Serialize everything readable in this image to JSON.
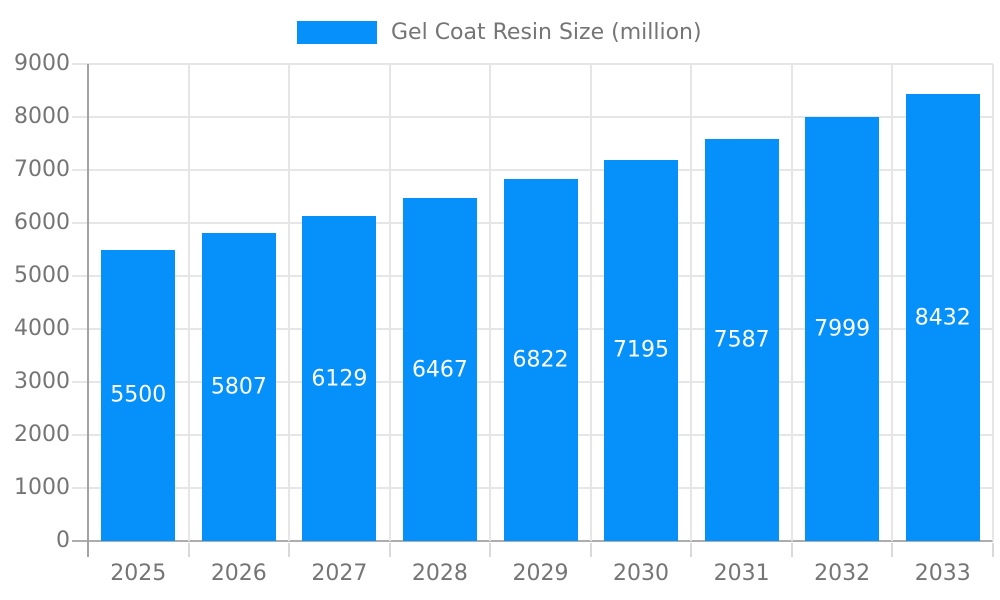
{
  "chart_data": {
    "type": "bar",
    "title": "",
    "legend_label": "Gel Coat Resin Size (million)",
    "legend_position": "top",
    "categories": [
      "2025",
      "2026",
      "2027",
      "2028",
      "2029",
      "2030",
      "2031",
      "2032",
      "2033"
    ],
    "series": [
      {
        "name": "Gel Coat Resin Size (million)",
        "values": [
          5500,
          5807,
          6129,
          6467,
          6822,
          7195,
          7587,
          7999,
          8432
        ]
      }
    ],
    "bar_value_labels": [
      "5500",
      "5807",
      "6129",
      "6467",
      "6822",
      "7195",
      "7587",
      "7999",
      "8432"
    ],
    "xlabel": "",
    "ylabel": "",
    "ylim": [
      0,
      9000
    ],
    "ytick_step": 1000,
    "ytick_labels": [
      "0",
      "1000",
      "2000",
      "3000",
      "4000",
      "5000",
      "6000",
      "7000",
      "8000",
      "9000"
    ],
    "grid": true,
    "colors": {
      "bar": "#0590fa",
      "bar_label_text": "#ffffff",
      "axis_text": "#757575",
      "legend_text": "#757575",
      "gridline": "#e6e6e6",
      "axis_line": "#a3a3a3",
      "background": "#ffffff"
    }
  }
}
